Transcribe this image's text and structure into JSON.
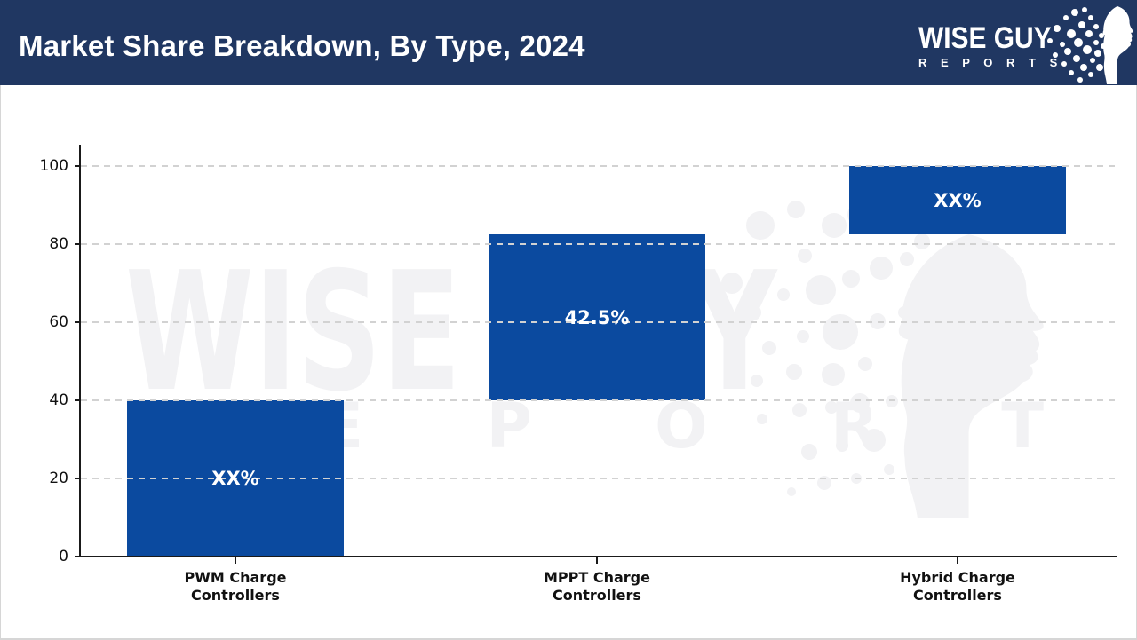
{
  "header": {
    "title": "Market Share Breakdown, By Type, 2024",
    "logo": {
      "line1": "WISE GUY",
      "line2": "R E P O R T S"
    }
  },
  "watermark": {
    "line1": "WISE GUY",
    "line2": "R E P O R T S"
  },
  "chart_data": {
    "type": "bar",
    "subtype": "waterfall",
    "title": "Market Share Breakdown, By Type, 2024",
    "categories": [
      "PWM Charge Controllers",
      "MPPT Charge Controllers",
      "Hybrid Charge Controllers"
    ],
    "bars": [
      {
        "category": "PWM Charge Controllers",
        "name_lines": [
          "PWM Charge",
          "Controllers"
        ],
        "label": "XX%",
        "from": 0,
        "to": 40
      },
      {
        "category": "MPPT Charge Controllers",
        "name_lines": [
          "MPPT Charge",
          "Controllers"
        ],
        "label": "42.5%",
        "from": 40,
        "to": 82.5
      },
      {
        "category": "Hybrid Charge Controllers",
        "name_lines": [
          "Hybrid Charge",
          "Controllers"
        ],
        "label": "XX%",
        "from": 82.5,
        "to": 100
      }
    ],
    "y_ticks": [
      0,
      20,
      40,
      60,
      80,
      100
    ],
    "ylim": [
      0,
      100
    ],
    "xlabel": "",
    "ylabel": "",
    "grid": "horizontal-dashed",
    "legend": "none",
    "bar_color": "#0b4a9f",
    "value_label_color": "#ffffff"
  },
  "colors": {
    "header_bg": "#203762",
    "bar": "#0b4a9f",
    "gridline": "#d2d2d2",
    "axis": "#1a1a1a",
    "watermark": "#f2f2f4",
    "page_bg": "#ffffff",
    "border": "#cccccc"
  }
}
